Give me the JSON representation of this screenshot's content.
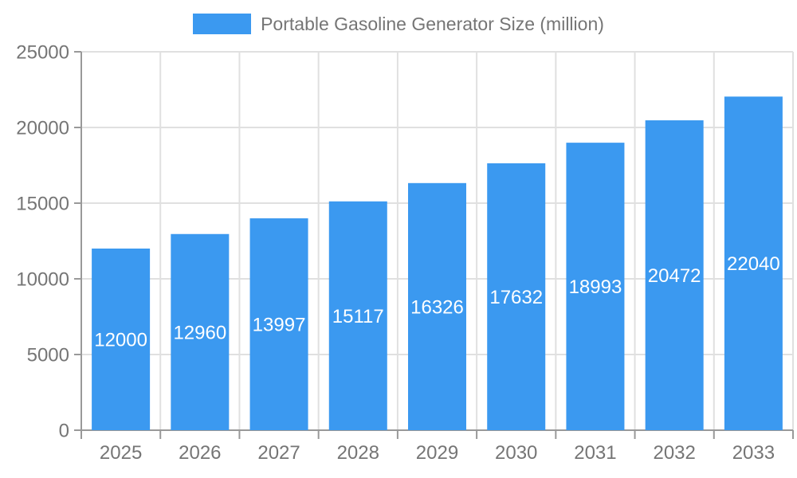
{
  "legend": {
    "label": "Portable Gasoline Generator Size (million)",
    "swatch_color": "#3b99f0"
  },
  "chart_data": {
    "type": "bar",
    "title": "",
    "xlabel": "",
    "ylabel": "",
    "categories": [
      "2025",
      "2026",
      "2027",
      "2028",
      "2029",
      "2030",
      "2031",
      "2032",
      "2033"
    ],
    "values": [
      12000,
      12960,
      13997,
      15117,
      16326,
      17632,
      18993,
      20472,
      22040
    ],
    "series_name": "Portable Gasoline Generator Size (million)",
    "ylim": [
      0,
      25000
    ],
    "yticks": [
      0,
      5000,
      10000,
      15000,
      20000,
      25000
    ],
    "grid": true,
    "legend_position": "top-center",
    "value_labels": "inside-center-white",
    "colors": {
      "bar": "#3b99f0",
      "grid_line": "#e0e0e0",
      "axis_line": "#999999",
      "tick_label": "#757575",
      "value_label": "#ffffff"
    }
  }
}
